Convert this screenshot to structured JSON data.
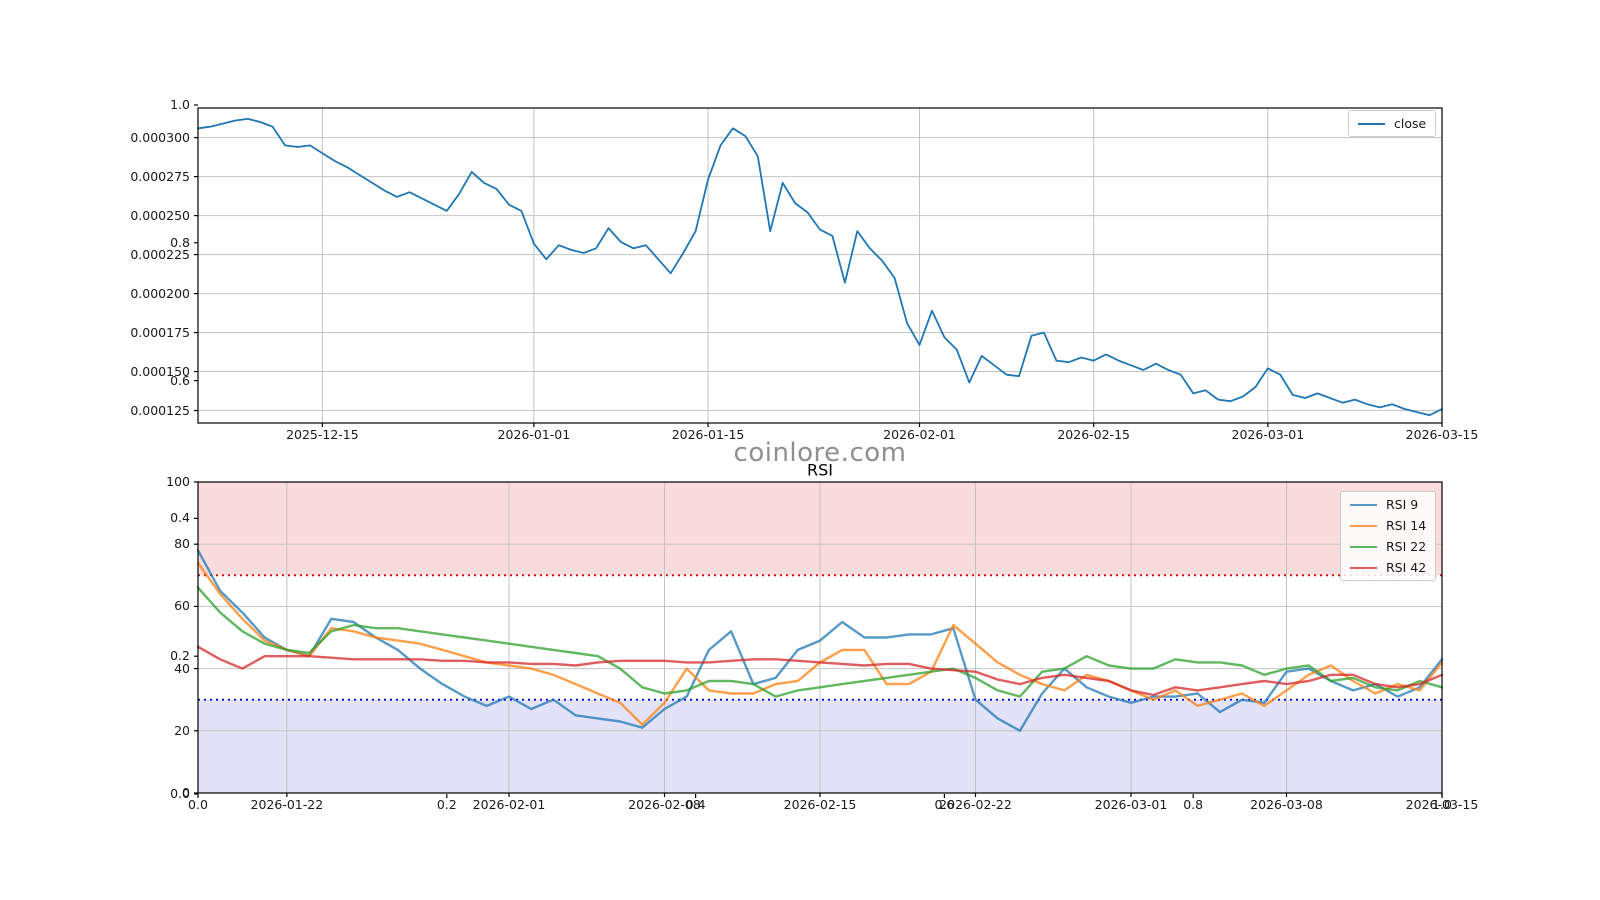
{
  "watermark": {
    "text": "coinlore.com"
  },
  "colors": {
    "close": "#1f77b4",
    "rsi9": "#1f77b4",
    "rsi14": "#ff7f0e",
    "rsi22": "#2ca02c",
    "rsi42": "#d62728",
    "grid": "#c4c4c4",
    "axis": "#000000",
    "overbought_band": "#fbdcdc",
    "oversold_band": "#e2e2f8",
    "overbought_line": "#d40000",
    "oversold_line": "#0000c8",
    "watermark_gray": "#8f8f8f"
  },
  "top_chart": {
    "legend": [
      "close"
    ],
    "x_ticks": [
      "2025-12-15",
      "2026-01-01",
      "2026-01-15",
      "2026-02-01",
      "2026-02-15",
      "2026-03-01",
      "2026-03-15"
    ],
    "y_ticks": [
      "0.000300",
      "0.000275",
      "0.000250",
      "0.000225",
      "0.000200",
      "0.000175",
      "0.000150",
      "0.000125"
    ]
  },
  "bottom_chart": {
    "title": "RSI",
    "legend": [
      "RSI 9",
      "RSI 14",
      "RSI 22",
      "RSI 42"
    ],
    "x_ticks": [
      "2026-01-22",
      "2026-02-01",
      "2026-02-08",
      "2026-02-15",
      "2026-02-22",
      "2026-03-01",
      "2026-03-08",
      "2026-03-15"
    ],
    "y_ticks": [
      "100",
      "80",
      "60",
      "40",
      "20",
      "0"
    ]
  },
  "phantom_axis": {
    "x_ticks": [
      "0.0",
      "0.2",
      "0.4",
      "0.6",
      "0.8",
      "1.0"
    ],
    "y_ticks": [
      "1.0",
      "0.8",
      "0.6",
      "0.4",
      "0.2",
      "0.0"
    ]
  },
  "chart_data": [
    {
      "type": "line",
      "panel": "price",
      "title": "",
      "xlabel": "",
      "ylabel": "",
      "grid": true,
      "legend_position": "upper right",
      "value_scale": "1e-6",
      "ylim": [
        117,
        319
      ],
      "y_tick_values": [
        300,
        275,
        250,
        225,
        200,
        175,
        150,
        125
      ],
      "x_range": [
        "2025-12-05",
        "2026-03-15"
      ],
      "series": [
        {
          "name": "close",
          "color": "#1f77b4",
          "start_date": "2025-12-05",
          "freq": "daily",
          "values": [
            306,
            307,
            309,
            311,
            312,
            310,
            307,
            295,
            294,
            295,
            290,
            285,
            281,
            276,
            271,
            266,
            262,
            265,
            261,
            257,
            253,
            264,
            278,
            271,
            267,
            257,
            253,
            232,
            222,
            231,
            228,
            226,
            229,
            242,
            233,
            229,
            231,
            222,
            213,
            226,
            240,
            273,
            295,
            306,
            301,
            288,
            240,
            271,
            258,
            252,
            241,
            237,
            207,
            240,
            229,
            221,
            210,
            181,
            167,
            189,
            172,
            164,
            143,
            160,
            154,
            148,
            147,
            173,
            175,
            157,
            156,
            159,
            157,
            161,
            157,
            154,
            151,
            155,
            151,
            148,
            136,
            138,
            132,
            131,
            134,
            140,
            152,
            148,
            135,
            133,
            136,
            133,
            130,
            132,
            129,
            127,
            129,
            126,
            124,
            122,
            126
          ]
        }
      ]
    },
    {
      "type": "line",
      "panel": "rsi",
      "title": "RSI",
      "grid": true,
      "legend_position": "upper right",
      "ylim": [
        0,
        100
      ],
      "y_tick_values": [
        100,
        80,
        60,
        40,
        20,
        0
      ],
      "x_range": [
        "2026-01-18",
        "2026-03-15"
      ],
      "bands": [
        {
          "from": 70,
          "to": 100,
          "color": "#fbdcdc",
          "meaning": "overbought"
        },
        {
          "from": 0,
          "to": 30,
          "color": "#e2e2f8",
          "meaning": "oversold"
        }
      ],
      "hlines": [
        {
          "y": 70,
          "color": "#d40000",
          "style": "dotted"
        },
        {
          "y": 30,
          "color": "#0000c8",
          "style": "dotted"
        }
      ],
      "series": [
        {
          "name": "RSI 9",
          "color": "#1f77b4",
          "start_date": "2026-01-18",
          "freq": "daily",
          "values": [
            78,
            65,
            58,
            50,
            46,
            44,
            56,
            55,
            50,
            46,
            40,
            35,
            31,
            28,
            31,
            27,
            30,
            25,
            24,
            23,
            21,
            27,
            31,
            46,
            52,
            35,
            37,
            46,
            49,
            55,
            50,
            50,
            51,
            51,
            53,
            30,
            24,
            20,
            32,
            40,
            34,
            31,
            29,
            31,
            31,
            32,
            26,
            30,
            29,
            39,
            40,
            36,
            33,
            35,
            31,
            34,
            43
          ]
        },
        {
          "name": "RSI 14",
          "color": "#ff7f0e",
          "start_date": "2026-01-18",
          "freq": "daily",
          "values": [
            74,
            64,
            56,
            49,
            46,
            44,
            53,
            52,
            50,
            49,
            48,
            46,
            44,
            42,
            41,
            40,
            38,
            35,
            32,
            29,
            22,
            29,
            40,
            33,
            32,
            32,
            35,
            36,
            42,
            46,
            46,
            35,
            35,
            39,
            54,
            48,
            42,
            38,
            35,
            33,
            38,
            36,
            33,
            30,
            33,
            28,
            30,
            32,
            28,
            33,
            38,
            41,
            36,
            32,
            35,
            33,
            42
          ]
        },
        {
          "name": "RSI 22",
          "color": "#2ca02c",
          "start_date": "2026-01-18",
          "freq": "daily",
          "values": [
            66,
            58,
            52,
            48,
            46,
            45,
            52,
            54,
            53,
            53,
            52,
            51,
            50,
            49,
            48,
            47,
            46,
            45,
            44,
            40,
            34,
            32,
            33,
            36,
            36,
            35,
            31,
            33,
            34,
            35,
            36,
            37,
            38,
            39,
            40,
            37,
            33,
            31,
            39,
            40,
            44,
            41,
            40,
            40,
            43,
            42,
            42,
            41,
            38,
            40,
            41,
            36,
            37,
            34,
            33,
            36,
            34
          ]
        },
        {
          "name": "RSI 42",
          "color": "#d62728",
          "start_date": "2026-01-18",
          "freq": "daily",
          "values": [
            47,
            43,
            40,
            44,
            44,
            44,
            43.5,
            43,
            43,
            43,
            43,
            42.5,
            42.5,
            42,
            42,
            41.5,
            41.5,
            41,
            42,
            42.5,
            42.5,
            42.5,
            42,
            42,
            42.5,
            43,
            43,
            42.5,
            42,
            41.5,
            41,
            41.5,
            41.5,
            40,
            39.5,
            39,
            36.5,
            35,
            37,
            38,
            37,
            36,
            33,
            31.5,
            34,
            33,
            34,
            35,
            36,
            35,
            36,
            38,
            38,
            35,
            34,
            35,
            38
          ]
        }
      ]
    }
  ]
}
